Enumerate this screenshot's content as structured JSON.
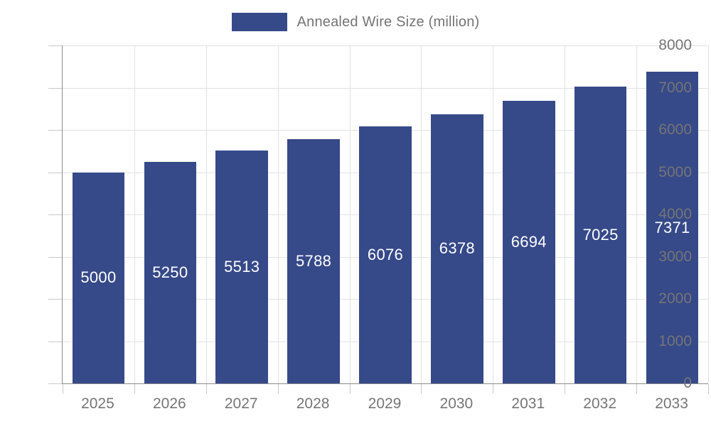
{
  "legend": {
    "label": "Annealed Wire Size (million)"
  },
  "chart_data": {
    "type": "bar",
    "title": "",
    "xlabel": "",
    "ylabel": "",
    "categories": [
      "2025",
      "2026",
      "2027",
      "2028",
      "2029",
      "2030",
      "2031",
      "2032",
      "2033"
    ],
    "series": [
      {
        "name": "Annealed Wire Size (million)",
        "values": [
          5000,
          5250,
          5513,
          5788,
          6076,
          6378,
          6694,
          7025,
          7371
        ]
      }
    ],
    "value_labels": [
      "5000",
      "5250",
      "5513",
      "5788",
      "6076",
      "6378",
      "6694",
      "7025",
      "7371"
    ],
    "ylim": [
      0,
      8000
    ],
    "ytick_step": 1000,
    "ytick_labels": [
      "0",
      "1000",
      "2000",
      "3000",
      "4000",
      "5000",
      "6000",
      "7000",
      "8000"
    ],
    "grid": "both",
    "legend_position": "top-center",
    "value_label_position": "inside-center",
    "colors": {
      "bar": "#364989",
      "value_label": "#ffffff",
      "grid": "#e2e2e2",
      "axis": "#8d8d8d",
      "tick": "#c9c9c9",
      "tick_label": "#757575",
      "legend_text": "#747474"
    }
  }
}
